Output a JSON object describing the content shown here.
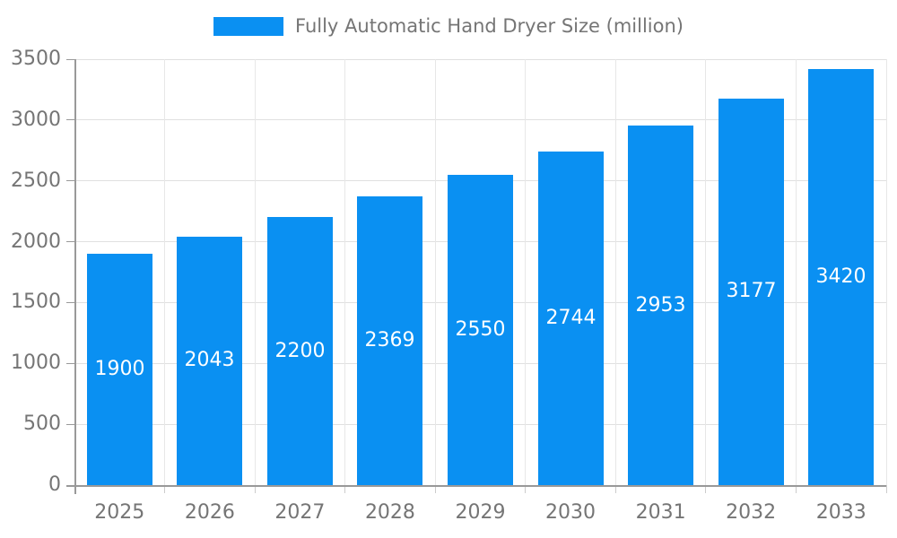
{
  "chart_data": {
    "type": "bar",
    "title": "",
    "series_name": "Fully Automatic Hand Dryer Size (million)",
    "legend_position": "top",
    "categories": [
      "2025",
      "2026",
      "2027",
      "2028",
      "2029",
      "2030",
      "2031",
      "2032",
      "2033"
    ],
    "values": [
      1900,
      2043,
      2200,
      2369,
      2550,
      2744,
      2953,
      3177,
      3420
    ],
    "xlabel": "",
    "ylabel": "",
    "ylim": [
      0,
      3500
    ],
    "ytick_step": 500,
    "grid": true,
    "value_labels": "inside-center",
    "colors": {
      "bar": "#0a90f2",
      "axis": "#999999",
      "grid_h": "#e0e0e0",
      "grid_v": "#e7e7e7",
      "tick_x": "#cccccc",
      "text": "#757575",
      "value_label": "#ffffff",
      "background": "#ffffff"
    }
  }
}
